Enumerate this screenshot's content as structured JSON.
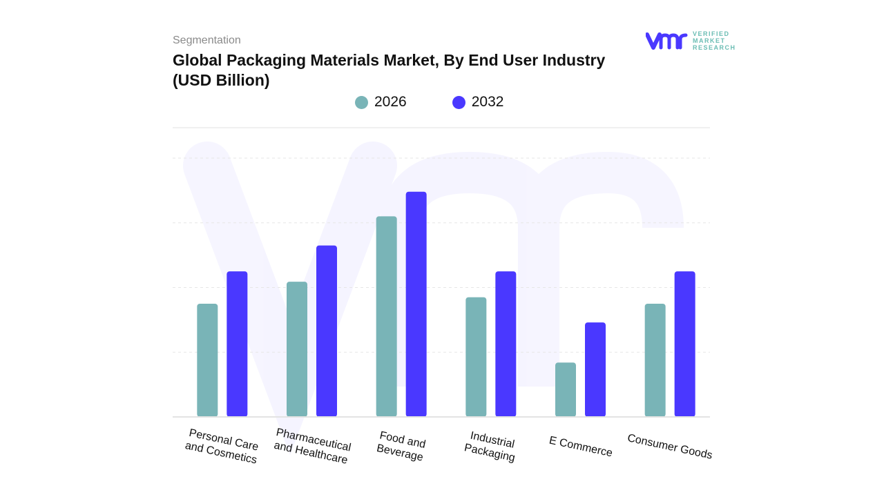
{
  "header": {
    "segment_label": "Segmentation",
    "title_line1": "Global Packaging Materials Market, By End User Industry",
    "title_line2": "(USD Billion)"
  },
  "logo": {
    "mark": "vmr",
    "line1": "VERIFIED",
    "line2": "MARKET",
    "line3": "RESEARCH"
  },
  "colors": {
    "s2026": "#79b4b7",
    "s2032": "#4a38ff",
    "grid": "#e6e6e6"
  },
  "chart_data": {
    "type": "bar",
    "title": "Global Packaging Materials Market, By End User Industry (USD Billion)",
    "categories": [
      [
        "Personal Care",
        "and Cosmetics"
      ],
      [
        "Pharmaceutical",
        "and Healthcare"
      ],
      [
        "Food and",
        "Beverage"
      ],
      [
        "Industrial",
        "Packaging"
      ],
      [
        "E Commerce"
      ],
      [
        "Consumer Goods"
      ]
    ],
    "series": [
      {
        "name": "2026",
        "values": [
          1.75,
          2.09,
          3.1,
          1.85,
          0.84,
          1.75
        ]
      },
      {
        "name": "2032",
        "values": [
          2.25,
          2.65,
          3.48,
          2.25,
          1.46,
          2.25
        ]
      }
    ],
    "ylim": [
      0,
      4
    ],
    "grid": true,
    "legend": "top-center",
    "xlabel": "",
    "ylabel": ""
  }
}
